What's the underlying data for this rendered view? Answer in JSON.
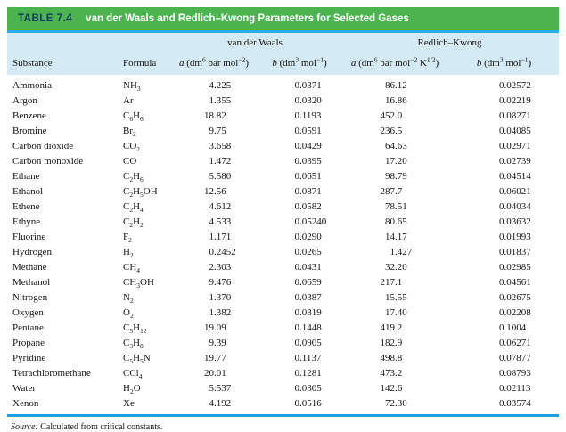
{
  "colors": {
    "title_bg": "#4cb44f",
    "title_label": "#113a63",
    "title_text": "#ffffff",
    "divider": "#29aee3",
    "header_bg": "#d4eaf5",
    "rule": "#1f9ed9",
    "text": "#141414"
  },
  "header": {
    "label": "TABLE 7.4",
    "title": "van der Waals and Redlich–Kwong Parameters for Selected Gases"
  },
  "columns": {
    "substance": "Substance",
    "formula": "Formula",
    "groups": [
      {
        "name": "van der Waals"
      },
      {
        "name": "Redlich–Kwong"
      }
    ],
    "units": [
      {
        "var": "a",
        "units": "(dm^6 bar mol^−2)"
      },
      {
        "var": "b",
        "units": "(dm^3 mol^−1)"
      },
      {
        "var": "a",
        "units": "(dm^6 bar mol^−2 K^1/2)"
      },
      {
        "var": "b",
        "units": "(dm^3 mol^−1)"
      }
    ]
  },
  "rows": [
    {
      "substance": "Ammonia",
      "formula": "NH_3",
      "vdw_a": "4.225",
      "vdw_b": "0.0371",
      "rk_a": "86.12",
      "rk_b": "0.02572"
    },
    {
      "substance": "Argon",
      "formula": "Ar",
      "vdw_a": "1.355",
      "vdw_b": "0.0320",
      "rk_a": "16.86",
      "rk_b": "0.02219"
    },
    {
      "substance": "Benzene",
      "formula": "C_6H_6",
      "vdw_a": "18.82",
      "vdw_b": "0.1193",
      "rk_a": "452.0",
      "rk_b": "0.08271"
    },
    {
      "substance": "Bromine",
      "formula": "Br_2",
      "vdw_a": "9.75",
      "vdw_b": "0.0591",
      "rk_a": "236.5",
      "rk_b": "0.04085"
    },
    {
      "substance": "Carbon dioxide",
      "formula": "CO_2",
      "vdw_a": "3.658",
      "vdw_b": "0.0429",
      "rk_a": "64.63",
      "rk_b": "0.02971"
    },
    {
      "substance": "Carbon monoxide",
      "formula": "CO",
      "vdw_a": "1.472",
      "vdw_b": "0.0395",
      "rk_a": "17.20",
      "rk_b": "0.02739"
    },
    {
      "substance": "Ethane",
      "formula": "C_2H_6",
      "vdw_a": "5.580",
      "vdw_b": "0.0651",
      "rk_a": "98.79",
      "rk_b": "0.04514"
    },
    {
      "substance": "Ethanol",
      "formula": "C_2H_5OH",
      "vdw_a": "12.56",
      "vdw_b": "0.0871",
      "rk_a": "287.7",
      "rk_b": "0.06021"
    },
    {
      "substance": "Ethene",
      "formula": "C_2H_4",
      "vdw_a": "4.612",
      "vdw_b": "0.0582",
      "rk_a": "78.51",
      "rk_b": "0.04034"
    },
    {
      "substance": "Ethyne",
      "formula": "C_2H_2",
      "vdw_a": "4.533",
      "vdw_b": "0.05240",
      "rk_a": "80.65",
      "rk_b": "0.03632"
    },
    {
      "substance": "Fluorine",
      "formula": "F_2",
      "vdw_a": "1.171",
      "vdw_b": "0.0290",
      "rk_a": "14.17",
      "rk_b": "0.01993"
    },
    {
      "substance": "Hydrogen",
      "formula": "H_2",
      "vdw_a": "0.2452",
      "vdw_b": "0.0265",
      "rk_a": "1.427",
      "rk_b": "0.01837"
    },
    {
      "substance": "Methane",
      "formula": "CH_4",
      "vdw_a": "2.303",
      "vdw_b": "0.0431",
      "rk_a": "32.20",
      "rk_b": "0.02985"
    },
    {
      "substance": "Methanol",
      "formula": "CH_3OH",
      "vdw_a": "9.476",
      "vdw_b": "0.0659",
      "rk_a": "217.1",
      "rk_b": "0.04561"
    },
    {
      "substance": "Nitrogen",
      "formula": "N_2",
      "vdw_a": "1.370",
      "vdw_b": "0.0387",
      "rk_a": "15.55",
      "rk_b": "0.02675"
    },
    {
      "substance": "Oxygen",
      "formula": "O_2",
      "vdw_a": "1.382",
      "vdw_b": "0.0319",
      "rk_a": "17.40",
      "rk_b": "0.02208"
    },
    {
      "substance": "Pentane",
      "formula": "C_5H_12",
      "vdw_a": "19.09",
      "vdw_b": "0.1448",
      "rk_a": "419.2",
      "rk_b": "0.1004"
    },
    {
      "substance": "Propane",
      "formula": "C_3H_8",
      "vdw_a": "9.39",
      "vdw_b": "0.0905",
      "rk_a": "182.9",
      "rk_b": "0.06271"
    },
    {
      "substance": "Pyridine",
      "formula": "C_5H_5N",
      "vdw_a": "19.77",
      "vdw_b": "0.1137",
      "rk_a": "498.8",
      "rk_b": "0.07877"
    },
    {
      "substance": "Tetrachloromethane",
      "formula": "CCl_4",
      "vdw_a": "20.01",
      "vdw_b": "0.1281",
      "rk_a": "473.2",
      "rk_b": "0.08793"
    },
    {
      "substance": "Water",
      "formula": "H_2O",
      "vdw_a": "5.537",
      "vdw_b": "0.0305",
      "rk_a": "142.6",
      "rk_b": "0.02113"
    },
    {
      "substance": "Xenon",
      "formula": "Xe",
      "vdw_a": "4.192",
      "vdw_b": "0.0516",
      "rk_a": "72.30",
      "rk_b": "0.03574"
    }
  ],
  "source_note": {
    "label": "Source:",
    "text": " Calculated from critical constants."
  }
}
